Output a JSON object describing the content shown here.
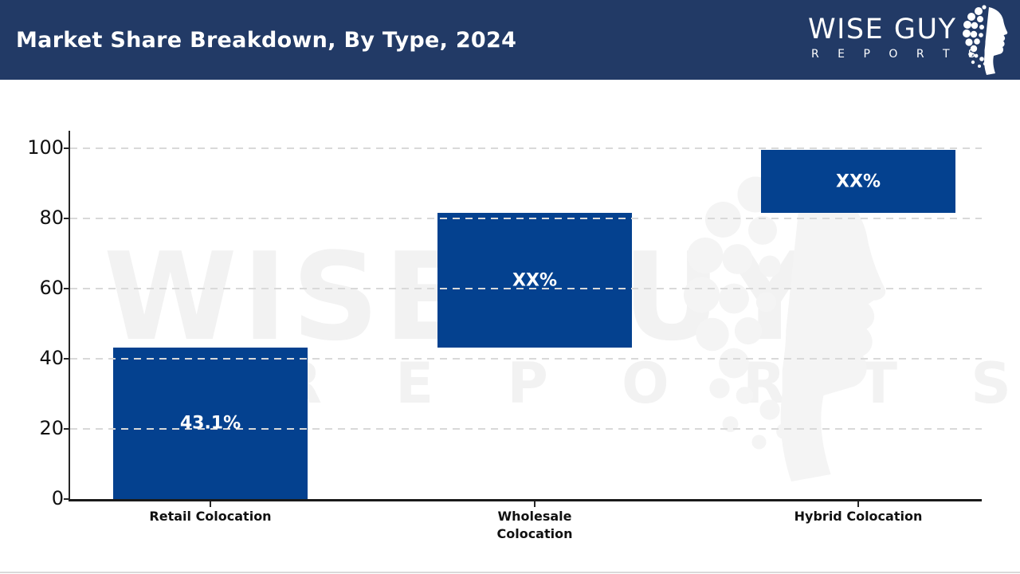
{
  "header": {
    "title": "Market Share Breakdown, By Type, 2024",
    "bg_color": "#223A66",
    "logo": {
      "line1": "WISE GUY",
      "line2": "R E P O R T S"
    }
  },
  "watermark": {
    "line1": "WISE GUY",
    "line2": "R E P O R T S",
    "color": "#f2f2f2"
  },
  "chart_data": {
    "type": "bar",
    "subtype": "floating-waterfall",
    "title": "Market Share Breakdown, By Type, 2024",
    "categories": [
      "Retail Colocation",
      "Wholesale Colocation",
      "Hybrid Colocation"
    ],
    "tick_labels": [
      "Retail Colocation",
      "Wholesale\nColocation",
      "Hybrid Colocation"
    ],
    "bars": [
      {
        "label": "43.1%",
        "start": 0,
        "end": 43.1
      },
      {
        "label": "XX%",
        "start": 43.1,
        "end": 81.5
      },
      {
        "label": "XX%",
        "start": 81.5,
        "end": 99.6
      }
    ],
    "yticks": [
      0,
      20,
      40,
      60,
      80,
      100
    ],
    "ylim": [
      0,
      105
    ],
    "xlabel": "",
    "ylabel": "",
    "legend": "none",
    "grid": "dashed-horizontal-over-bars",
    "bar_color": "#04418F",
    "gridline_color": "#d9d9d9",
    "axis_color": "#262626",
    "label_color": "#ffffff",
    "tick_color": "#111111"
  }
}
